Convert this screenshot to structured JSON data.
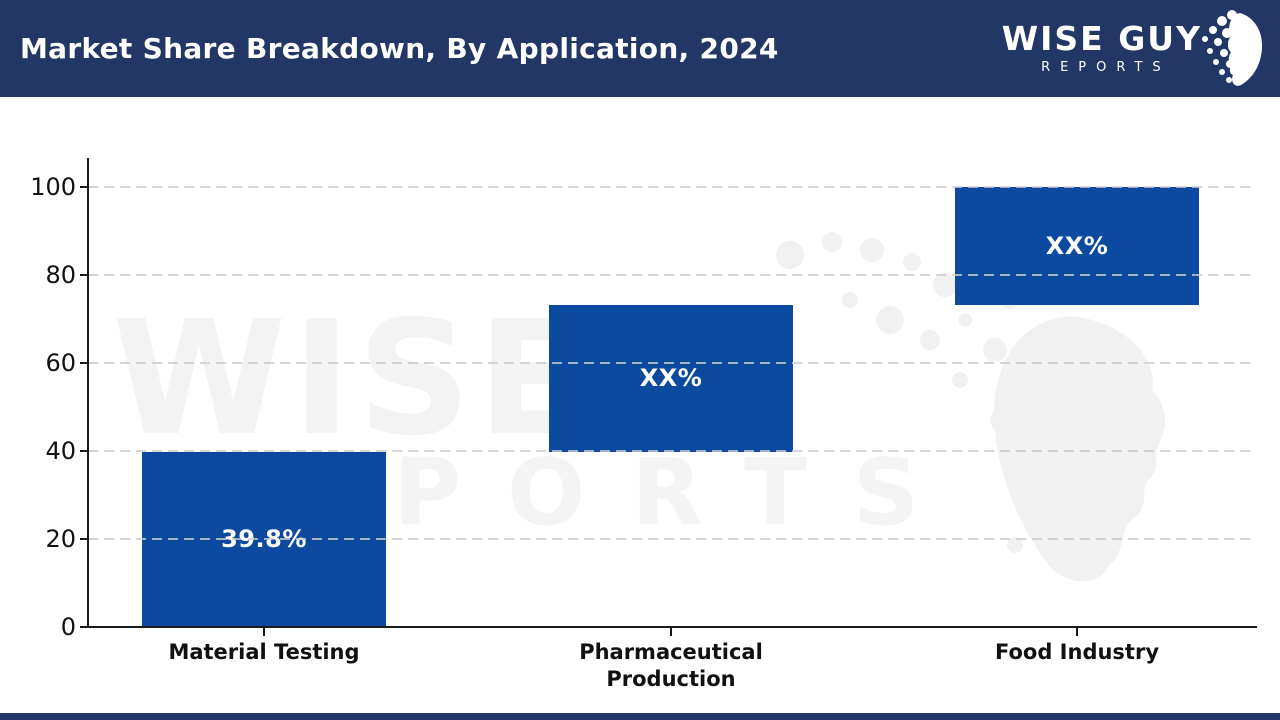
{
  "header": {
    "title": "Market Share Breakdown, By Application, 2024",
    "bg_color": "#223765",
    "logo": {
      "line1": "WISE GUY",
      "line2": "REPORTS"
    }
  },
  "watermark": {
    "line1": "WISE",
    "line2": "REPORTS"
  },
  "chart_data": {
    "type": "bar",
    "subtype": "floating-waterfall",
    "title": "Market Share Breakdown, By Application, 2024",
    "categories": [
      "Material Testing",
      "Pharmaceutical Production",
      "Food Industry"
    ],
    "segments": [
      {
        "category": "Material Testing",
        "start": 0,
        "end": 39.8,
        "label": "39.8%"
      },
      {
        "category": "Pharmaceutical Production",
        "start": 39.8,
        "end": 73.2,
        "label": "XX%"
      },
      {
        "category": "Food Industry",
        "start": 73.2,
        "end": 100,
        "label": "XX%"
      }
    ],
    "ylim": [
      0,
      100
    ],
    "yticks": [
      0,
      20,
      40,
      60,
      80,
      100
    ],
    "grid": "horizontal-dashed",
    "legend": "none",
    "bar_color": "#0c4aa0",
    "bar_label_color": "#ffffff",
    "axis_color": "#1a1a1a"
  }
}
